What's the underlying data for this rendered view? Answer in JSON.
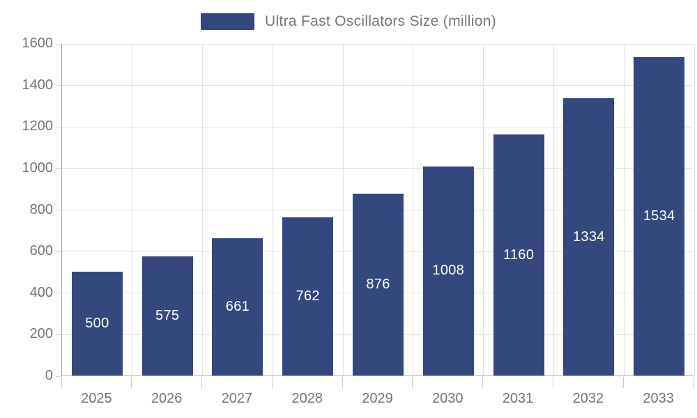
{
  "legend": {
    "label": "Ultra Fast Oscillators Size (million)"
  },
  "chart_data": {
    "type": "bar",
    "title": "Ultra Fast Oscillators Size (million)",
    "categories": [
      "2025",
      "2026",
      "2027",
      "2028",
      "2029",
      "2030",
      "2031",
      "2032",
      "2033"
    ],
    "series": [
      {
        "name": "Ultra Fast Oscillators Size (million)",
        "values": [
          500,
          575,
          661,
          762,
          876,
          1008,
          1160,
          1334,
          1534
        ]
      }
    ],
    "xlabel": "",
    "ylabel": "",
    "ylim": [
      0,
      1600
    ],
    "ytick_step": 200,
    "yticks": [
      0,
      200,
      400,
      600,
      800,
      1000,
      1200,
      1400,
      1600
    ],
    "grid": true,
    "legend_position": "top-center",
    "value_label_position": "inside-center"
  },
  "colors": {
    "bar": "#34477e",
    "value_label": "#ffffff",
    "axis_text": "#757575",
    "grid_line": "#e1e1e1",
    "axis_line": "#a3a6ab",
    "background": "#ffffff"
  }
}
